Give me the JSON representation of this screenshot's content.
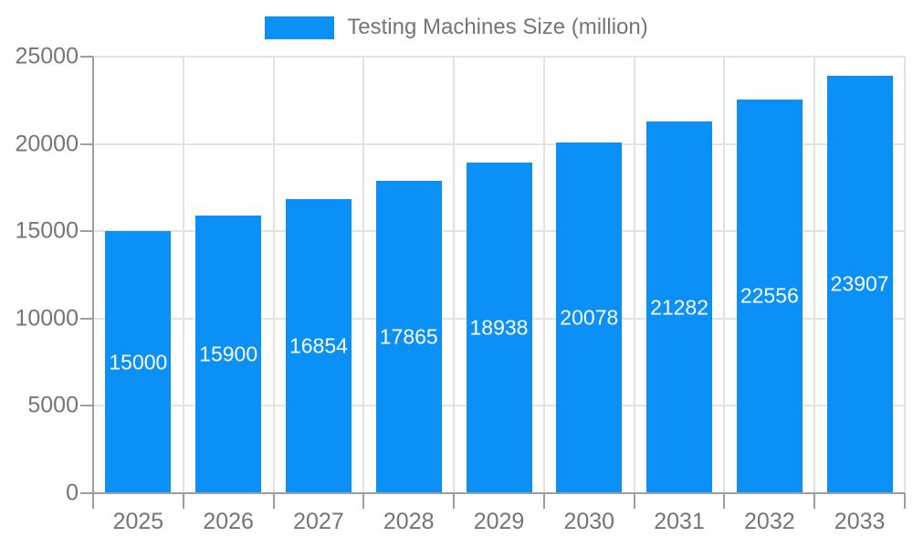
{
  "chart_data": {
    "type": "bar",
    "title": "Testing Machines Size (million)",
    "categories": [
      "2025",
      "2026",
      "2027",
      "2028",
      "2029",
      "2030",
      "2031",
      "2032",
      "2033"
    ],
    "values": [
      15000,
      15900,
      16854,
      17865,
      18938,
      20078,
      21282,
      22556,
      23907
    ],
    "xlabel": "",
    "ylabel": "",
    "ylim": [
      0,
      25000
    ],
    "yticks": [
      0,
      5000,
      10000,
      15000,
      20000,
      25000
    ],
    "grid": "both",
    "legend_position": "top-center",
    "bar_labels_shown": true,
    "bar_label_position": "center-of-bar"
  },
  "legend": {
    "label": "Testing Machines Size (million)"
  },
  "colors": {
    "bar": "#0b90f8",
    "bar_label_text": "#ffffff",
    "axis_text": "#757575",
    "axis_line": "#9e9e9e",
    "gridline": "#e3e3e3",
    "background": "#ffffff"
  }
}
